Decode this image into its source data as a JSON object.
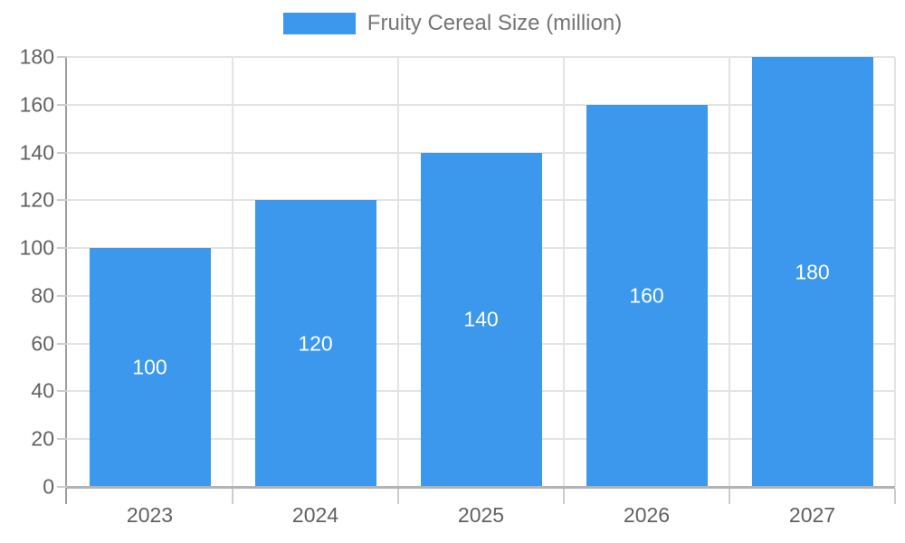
{
  "legend": {
    "items": [
      {
        "label": "Fruity Cereal Size (million)",
        "swatch_color": "#3b98ec"
      }
    ],
    "position": "top"
  },
  "chart_data": {
    "type": "bar",
    "title": "Fruity Cereal Size (million)",
    "categories": [
      "2023",
      "2024",
      "2025",
      "2026",
      "2027"
    ],
    "series": [
      {
        "name": "Fruity Cereal Size (million)",
        "values": [
          100,
          120,
          140,
          160,
          180
        ]
      }
    ],
    "values": [
      100,
      120,
      140,
      160,
      180
    ],
    "bar_value_labels": [
      "100",
      "120",
      "140",
      "160",
      "180"
    ],
    "xlabel": "",
    "ylabel": "",
    "ylim": [
      0,
      180
    ],
    "ytick_step": 20,
    "yticks": [
      0,
      20,
      40,
      60,
      80,
      100,
      120,
      140,
      160,
      180
    ],
    "grid": true,
    "legend_position": "top"
  },
  "colors": {
    "bar": "#3b98ec",
    "bar_label": "#ffffff",
    "axis_label": "#616161",
    "legend_text": "#757575",
    "gridline": "#e3e3e3",
    "y_axis_line": "#9e9e9e",
    "x_axis_line": "#b3b3b3",
    "tick": "#cccccc",
    "background": "#ffffff"
  }
}
